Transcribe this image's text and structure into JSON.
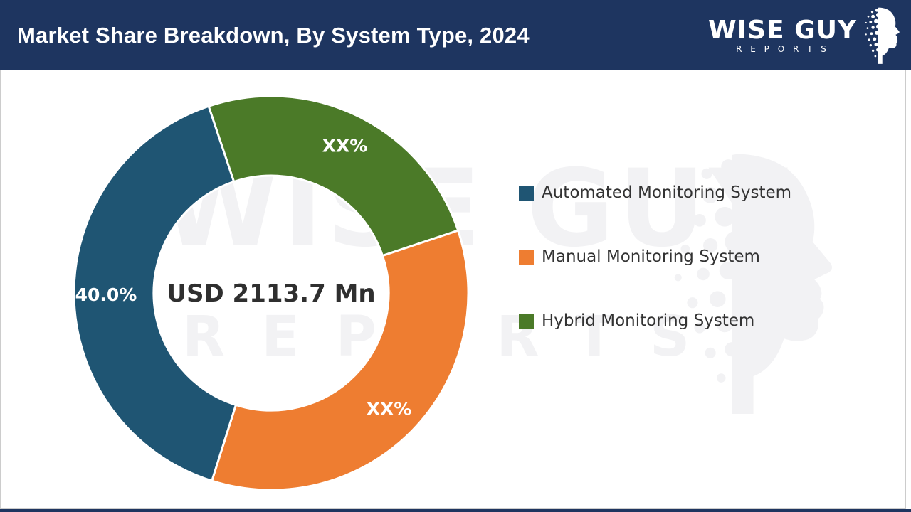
{
  "header": {
    "title": "Market Share Breakdown, By System Type, 2024",
    "bg_color": "#1E3560",
    "brand": {
      "wordmark": "WISE GUY",
      "sub_wordmark": "R E P O R T S"
    }
  },
  "watermark": {
    "line1": "WISE GUY",
    "line2": "R E P O R T S"
  },
  "chart_data": {
    "type": "pie",
    "subtype": "donut",
    "title": "Market Share Breakdown, By System Type, 2024",
    "center_label": "USD 2113.7 Mn",
    "start_angle_deg": -18.5,
    "direction": "clockwise",
    "legend_position": "right",
    "segments": [
      {
        "name": "Hybrid Monitoring System",
        "displayed_label": "XX%",
        "share_pct_estimate": 25,
        "color": "#4B7A28"
      },
      {
        "name": "Manual Monitoring System",
        "displayed_label": "XX%",
        "share_pct_estimate": 35,
        "color": "#EE7D31"
      },
      {
        "name": "Automated Monitoring System",
        "displayed_label": "40.0%",
        "share_pct_estimate": 40,
        "color": "#1F5573"
      }
    ],
    "legend": [
      {
        "label": "Automated Monitoring System",
        "color": "#1F5573"
      },
      {
        "label": "Manual Monitoring System",
        "color": "#EE7D31"
      },
      {
        "label": "Hybrid Monitoring System",
        "color": "#4B7A28"
      }
    ]
  },
  "footer": {
    "bar_color": "#1E3560"
  }
}
